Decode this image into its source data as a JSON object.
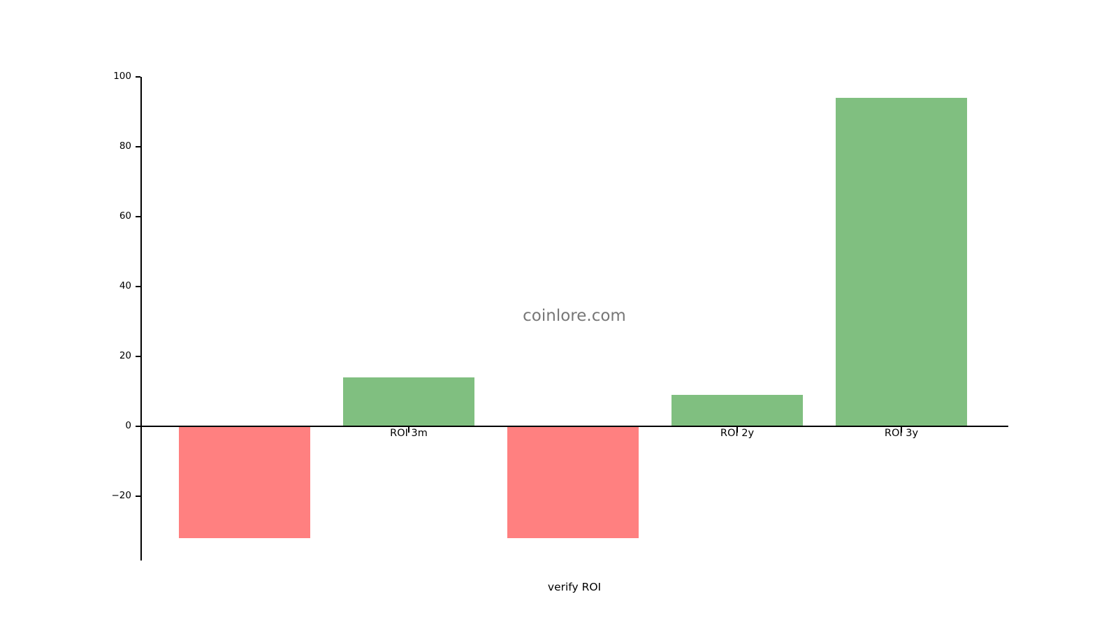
{
  "watermark": {
    "text": "coinlore.com",
    "color": "#777777"
  },
  "chart_data": {
    "type": "bar",
    "title": "",
    "xlabel": "verify ROI",
    "ylabel": "",
    "categories": [
      "",
      "ROI 3m",
      "",
      "ROI 2y",
      "ROI 3y"
    ],
    "values": [
      -32,
      14,
      -32,
      9,
      94
    ],
    "bar_colors": [
      "#ff8080",
      "#80bf80",
      "#ff8080",
      "#80bf80",
      "#80bf80"
    ],
    "negative_color": "#ff8080",
    "positive_color": "#80bf80",
    "ylim": [
      -38,
      100
    ],
    "yticks": [
      -20,
      0,
      20,
      40,
      60,
      80,
      100
    ],
    "grid": false,
    "legend": null,
    "axis_color": "#000000",
    "watermark": "coinlore.com",
    "notes": "zero baseline drawn as horizontal axis; tick labels for bars 1 and 3 hidden behind red bars"
  }
}
